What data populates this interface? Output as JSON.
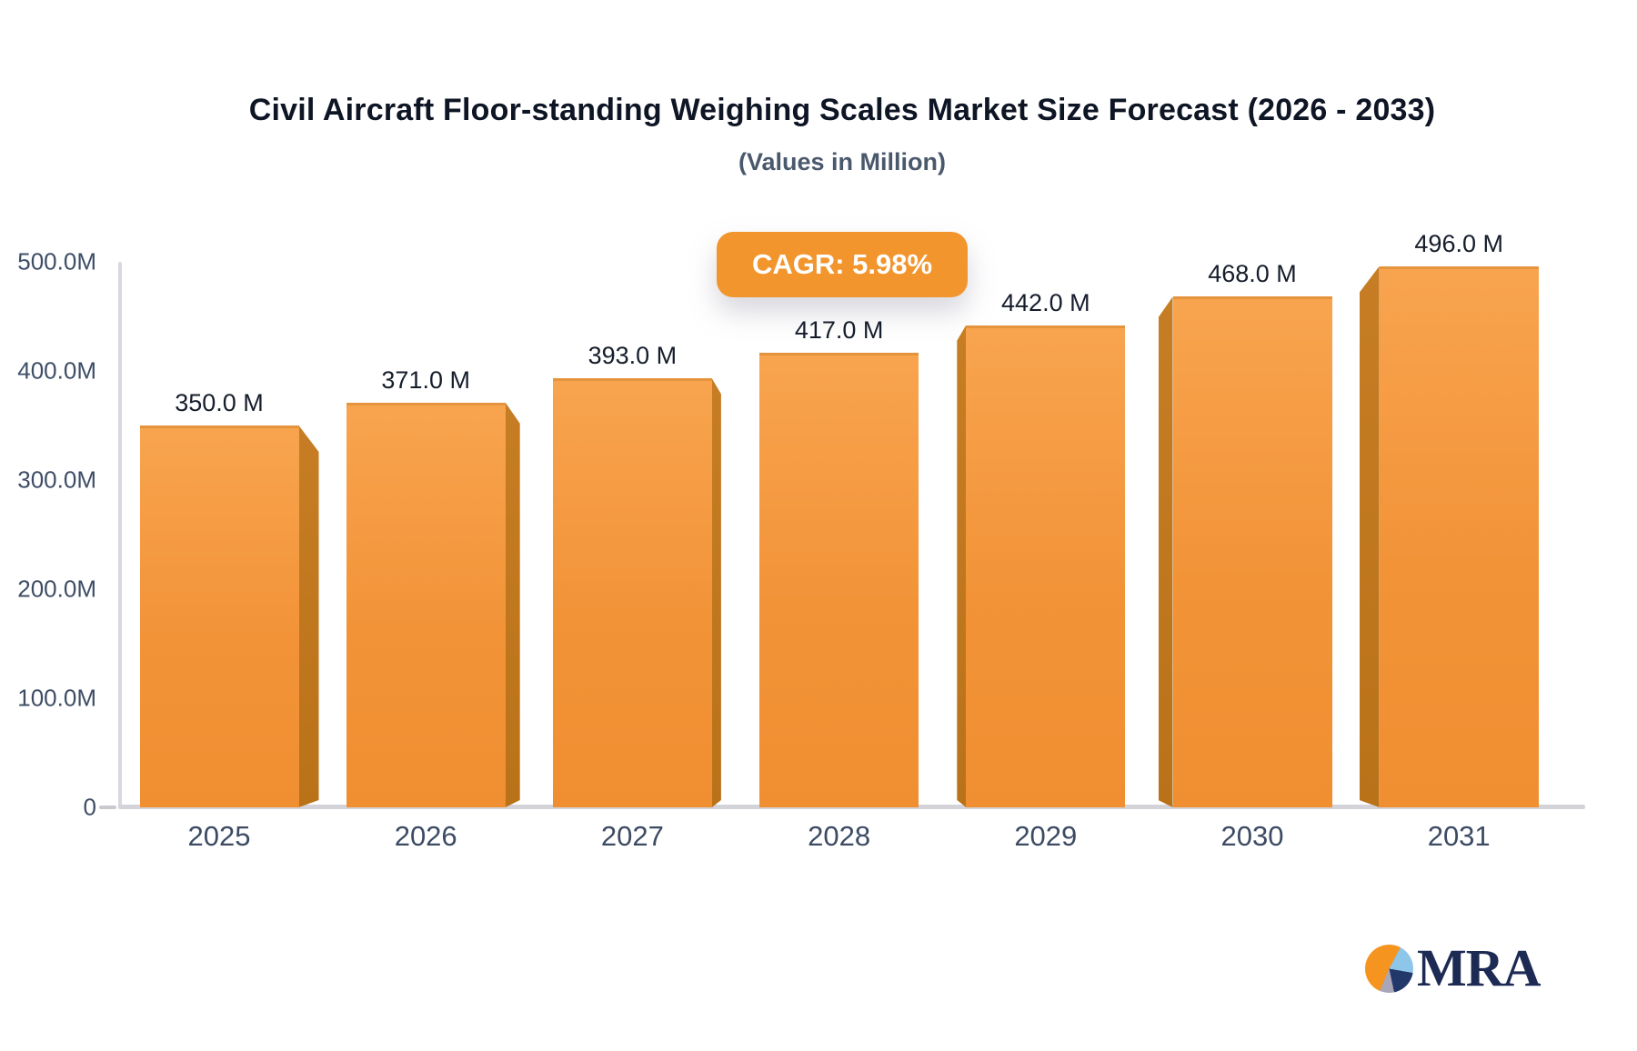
{
  "header": {
    "title": "Civil Aircraft Floor-standing Weighing Scales Market Size Forecast (2026 - 2033)",
    "subtitle": "(Values in Million)"
  },
  "badge": {
    "label": "CAGR: 5.98%",
    "bg_color": "#F2952D",
    "text_color": "#FFFFFF"
  },
  "chart_data": {
    "type": "bar",
    "title": "Civil Aircraft Floor-standing Weighing Scales Market Size Forecast (2026 - 2033)",
    "subtitle": "(Values in Million)",
    "categories": [
      "2025",
      "2026",
      "2027",
      "2028",
      "2029",
      "2030",
      "2031"
    ],
    "values": [
      350.0,
      371.0,
      393.0,
      417.0,
      442.0,
      468.0,
      496.0
    ],
    "value_labels": [
      "350.0 M",
      "371.0 M",
      "393.0 M",
      "417.0 M",
      "442.0 M",
      "468.0 M",
      "496.0 M"
    ],
    "cagr_percent": 5.98,
    "y_axis": {
      "range": [
        0,
        500
      ],
      "ticks": [
        {
          "label": "500.0M",
          "value": 500
        },
        {
          "label": "400.0M",
          "value": 400
        },
        {
          "label": "300.0M",
          "value": 300
        },
        {
          "label": "200.0M",
          "value": 200
        },
        {
          "label": "100.0M",
          "value": 100
        },
        {
          "label": "0",
          "value": 0
        }
      ]
    },
    "grid": false,
    "legend": false,
    "style": "3d-perspective-bars",
    "colors": {
      "bar_face_top": "#F8A44F",
      "bar_face_bottom": "#F08F31",
      "bar_side": "#C1781F",
      "axis_line": "#D6D6DC",
      "axis_text": "#3E4D66",
      "value_text": "#161D2B",
      "title_text": "#0E1524",
      "subtitle_text": "#4A586C"
    }
  },
  "logo": {
    "text": "MRA",
    "icon": "pie-chart-icon",
    "pie_colors": [
      "#F5941F",
      "#8EC6EA",
      "#22386B",
      "#A9A6B8"
    ],
    "text_color": "#1C2A54"
  }
}
